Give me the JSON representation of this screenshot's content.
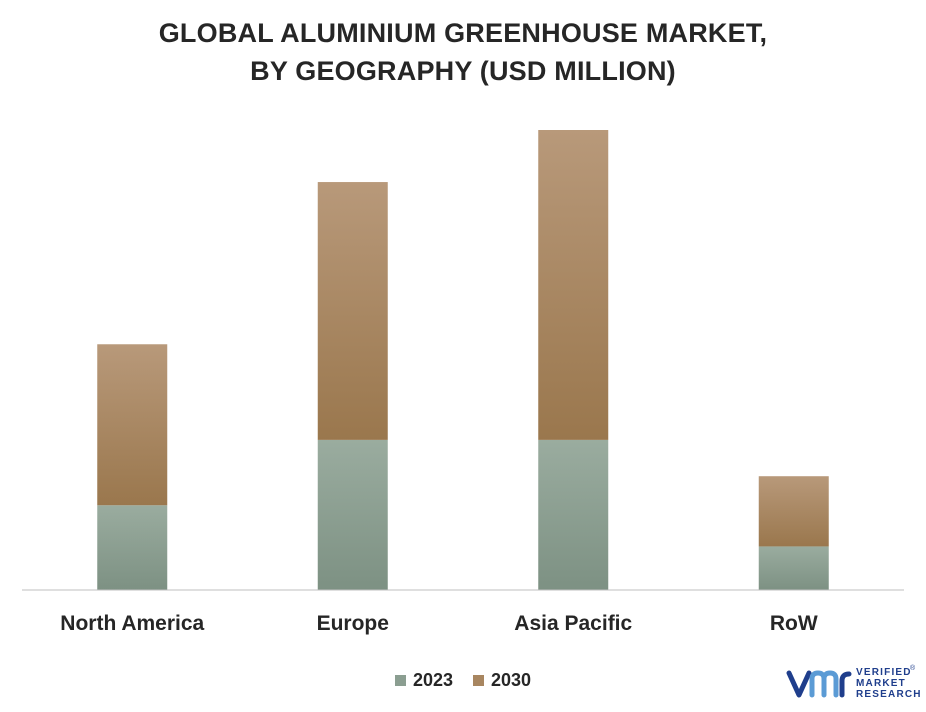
{
  "title": {
    "line1": "GLOBAL ALUMINIUM GREENHOUSE MARKET,",
    "line2": "BY GEOGRAPHY (USD MILLION)"
  },
  "colors": {
    "series_2023": "#8b9e91",
    "series_2030": "#a88660",
    "axis": "#bfbfbf",
    "brand": "#1f3e8c",
    "brand_accent": "#5b9bd5"
  },
  "chart_data": {
    "type": "bar",
    "stacked": true,
    "categories": [
      "North America",
      "Europe",
      "Asia Pacific",
      "RoW"
    ],
    "series": [
      {
        "name": "2023",
        "values": [
          70,
          124,
          124,
          36
        ]
      },
      {
        "name": "2030",
        "values": [
          133,
          213,
          256,
          58
        ]
      }
    ],
    "title": "GLOBAL ALUMINIUM GREENHOUSE MARKET, BY GEOGRAPHY (USD MILLION)",
    "xlabel": "",
    "ylabel": "",
    "ylim": [
      0,
      380
    ],
    "grid": false,
    "legend": "bottom"
  },
  "legend": {
    "items": [
      {
        "label": "2023",
        "icon": "square-swatch"
      },
      {
        "label": "2030",
        "icon": "square-swatch"
      }
    ]
  },
  "logo": {
    "line1": "VERIFIED",
    "line2": "MARKET",
    "line3": "RESEARCH",
    "reg": "®",
    "icon": "vmr-logo-icon"
  }
}
